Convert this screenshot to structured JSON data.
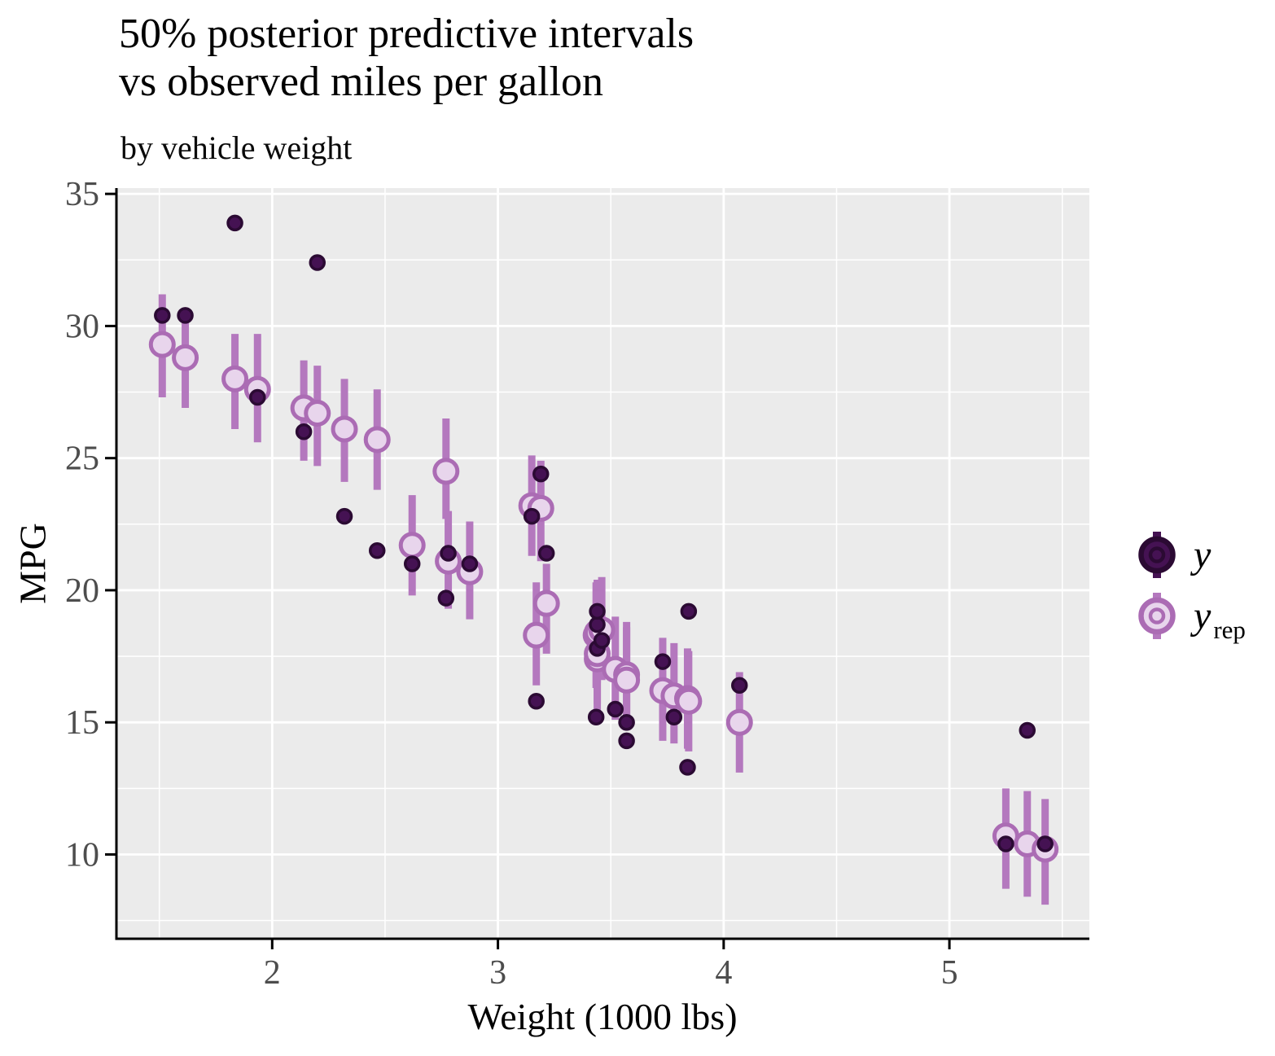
{
  "chart_data": {
    "type": "scatter",
    "title": "50% posterior predictive intervals\nvs observed miles per gallon",
    "subtitle": "by vehicle weight",
    "xlabel": "Weight (1000 lbs)",
    "ylabel": "MPG",
    "xlim": [
      1.31,
      5.62
    ],
    "ylim": [
      6.81,
      35.22
    ],
    "x_ticks": [
      2,
      3,
      4,
      5
    ],
    "y_ticks": [
      10,
      15,
      20,
      25,
      30,
      35
    ],
    "x_minor": [
      1.5,
      2.5,
      3.5,
      4.5,
      5.5
    ],
    "y_minor": [
      7.5,
      12.5,
      17.5,
      22.5,
      27.5,
      32.5
    ],
    "grid": true,
    "legend_position": "right",
    "series": [
      {
        "name": "y",
        "description": "observed MPG points"
      },
      {
        "name": "y_rep",
        "description": "posterior predictive medians with 50% intervals"
      }
    ],
    "points": [
      {
        "wt": 1.513,
        "y": 30.4,
        "med": 29.3,
        "lo": 27.3,
        "hi": 31.2
      },
      {
        "wt": 1.615,
        "y": 30.4,
        "med": 28.8,
        "lo": 26.9,
        "hi": 30.3
      },
      {
        "wt": 1.835,
        "y": 33.9,
        "med": 28.0,
        "lo": 26.1,
        "hi": 29.7
      },
      {
        "wt": 1.935,
        "y": 27.3,
        "med": 27.6,
        "lo": 25.6,
        "hi": 29.7
      },
      {
        "wt": 2.14,
        "y": 26.0,
        "med": 26.9,
        "lo": 24.9,
        "hi": 28.7
      },
      {
        "wt": 2.2,
        "y": 32.4,
        "med": 26.7,
        "lo": 24.7,
        "hi": 28.5
      },
      {
        "wt": 2.32,
        "y": 22.8,
        "med": 26.1,
        "lo": 24.1,
        "hi": 28.0
      },
      {
        "wt": 2.465,
        "y": 21.5,
        "med": 25.7,
        "lo": 23.8,
        "hi": 27.6
      },
      {
        "wt": 2.62,
        "y": 21.0,
        "med": 21.7,
        "lo": 19.8,
        "hi": 23.6
      },
      {
        "wt": 2.77,
        "y": 19.7,
        "med": 24.5,
        "lo": 22.7,
        "hi": 26.5
      },
      {
        "wt": 2.78,
        "y": 21.4,
        "med": 21.1,
        "lo": 19.3,
        "hi": 23.0
      },
      {
        "wt": 2.875,
        "y": 21.0,
        "med": 20.7,
        "lo": 18.9,
        "hi": 22.6
      },
      {
        "wt": 3.15,
        "y": 22.8,
        "med": 23.2,
        "lo": 21.3,
        "hi": 25.1
      },
      {
        "wt": 3.17,
        "y": 15.8,
        "med": 18.3,
        "lo": 16.4,
        "hi": 20.3
      },
      {
        "wt": 3.19,
        "y": 24.4,
        "med": 23.1,
        "lo": 21.1,
        "hi": 24.9
      },
      {
        "wt": 3.215,
        "y": 21.4,
        "med": 19.5,
        "lo": 17.6,
        "hi": 21.0
      },
      {
        "wt": 3.435,
        "y": 15.2,
        "med": 18.3,
        "lo": 16.3,
        "hi": 20.3
      },
      {
        "wt": 3.44,
        "y": 18.7,
        "med": 17.4,
        "lo": 15.4,
        "hi": 19.4
      },
      {
        "wt": 3.44,
        "y": 19.2,
        "med": 18.4,
        "lo": 16.5,
        "hi": 20.4
      },
      {
        "wt": 3.44,
        "y": 17.8,
        "med": 17.6,
        "lo": 15.7,
        "hi": 19.6
      },
      {
        "wt": 3.46,
        "y": 18.1,
        "med": 18.5,
        "lo": 16.6,
        "hi": 20.5
      },
      {
        "wt": 3.52,
        "y": 15.5,
        "med": 17.0,
        "lo": 15.1,
        "hi": 19.0
      },
      {
        "wt": 3.57,
        "y": 14.3,
        "med": 16.8,
        "lo": 14.9,
        "hi": 18.8
      },
      {
        "wt": 3.57,
        "y": 15.0,
        "med": 16.6,
        "lo": 14.7,
        "hi": 18.6
      },
      {
        "wt": 3.73,
        "y": 17.3,
        "med": 16.2,
        "lo": 14.3,
        "hi": 18.2
      },
      {
        "wt": 3.78,
        "y": 15.2,
        "med": 16.0,
        "lo": 14.2,
        "hi": 18.0
      },
      {
        "wt": 3.84,
        "y": 13.3,
        "med": 15.9,
        "lo": 14.0,
        "hi": 17.8
      },
      {
        "wt": 3.845,
        "y": 19.2,
        "med": 15.8,
        "lo": 13.9,
        "hi": 17.7
      },
      {
        "wt": 4.07,
        "y": 16.4,
        "med": 15.0,
        "lo": 13.1,
        "hi": 16.9
      },
      {
        "wt": 5.25,
        "y": 10.4,
        "med": 10.7,
        "lo": 8.7,
        "hi": 12.5
      },
      {
        "wt": 5.345,
        "y": 14.7,
        "med": 10.4,
        "lo": 8.4,
        "hi": 12.4
      },
      {
        "wt": 5.424,
        "y": 10.4,
        "med": 10.2,
        "lo": 8.1,
        "hi": 12.1
      }
    ]
  },
  "legend": {
    "y_label": "y",
    "yrep_main": "y",
    "yrep_sub": "rep"
  },
  "colors": {
    "panel_bg": "#ebebeb",
    "grid": "#ffffff",
    "axis_line": "#000000",
    "tick_label": "#4d4d4d",
    "interval": "#b478be",
    "yrep_fill": "#e8d5ec",
    "yrep_stroke": "#ab6cb4",
    "y_fill": "#451253",
    "y_stroke": "#2b0a33"
  }
}
